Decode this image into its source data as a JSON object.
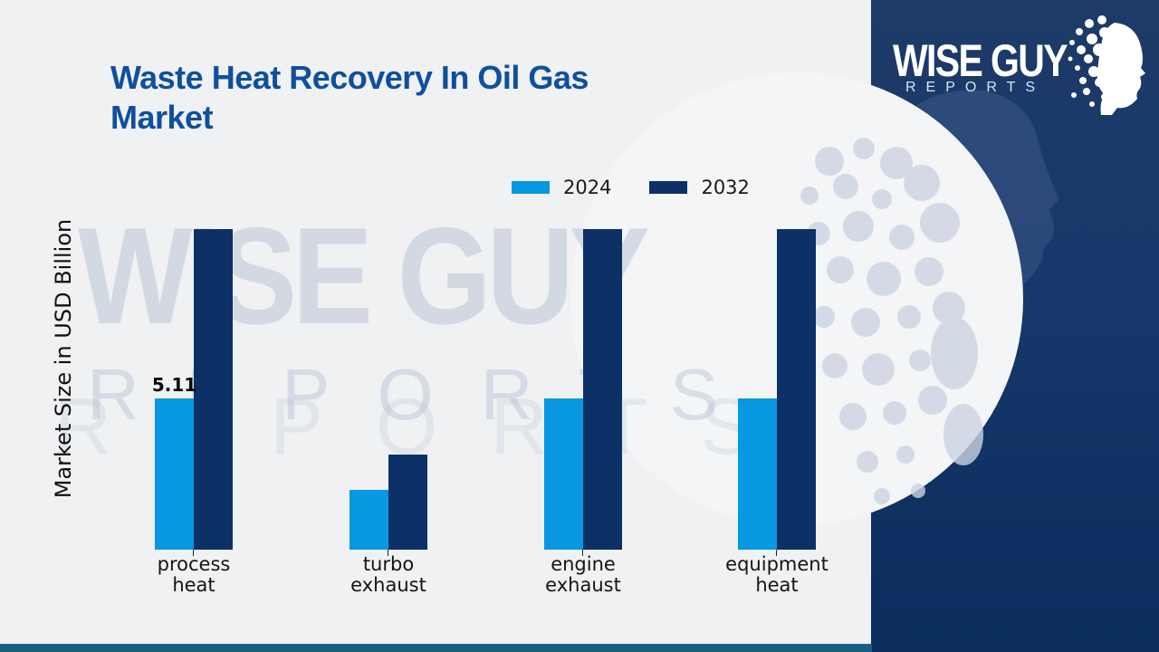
{
  "page": {
    "background": "#eff1f3",
    "bottom_bar_color": "#1a5f7f",
    "panel_navy_top": "#1d3b68",
    "panel_navy_bottom": "#0a2d5e"
  },
  "header": {
    "title": "Waste Heat Recovery In Oil Gas Market",
    "title_color": "#0f4f9e"
  },
  "logo": {
    "brand": "WISE GUY",
    "sub": "REPORTS"
  },
  "watermark": {
    "line1": "WISE GUY",
    "line2": "REPORTS"
  },
  "chart_data": {
    "type": "bar",
    "title": "Waste Heat Recovery In Oil Gas Market",
    "xlabel": "",
    "ylabel": "Market Size in USD Billion",
    "categories": [
      "process heat",
      "turbo exhaust",
      "engine exhaust",
      "equipment heat"
    ],
    "series": [
      {
        "name": "2024",
        "color": "#0897e1",
        "values": [
          5.11,
          2.01,
          5.11,
          5.11
        ]
      },
      {
        "name": "2032",
        "color": "#0d3166",
        "values": [
          10.83,
          3.22,
          10.83,
          10.83
        ]
      }
    ],
    "bar_labels": [
      {
        "series": "2024",
        "category": "process heat",
        "text": "5.11"
      }
    ],
    "legend_position": "top-center",
    "grid": false
  }
}
